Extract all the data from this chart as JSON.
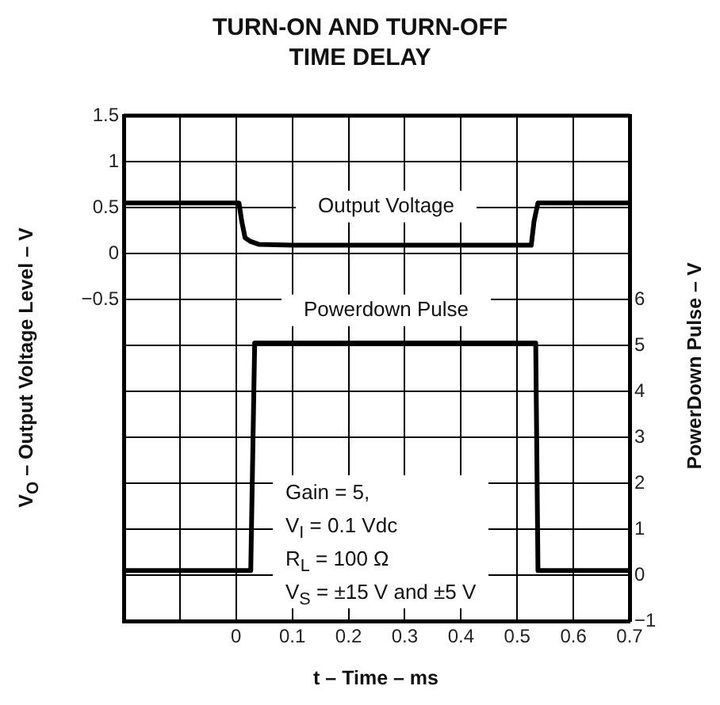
{
  "chart_data": {
    "type": "line",
    "title": "TURN-ON AND TURN-OFF TIME DELAY",
    "xlabel": "t – Time – ms",
    "ylabel": "V$_{O}$ – Output Voltage Level – V",
    "y2label": "PowerDown Pulse – V",
    "xlim": [
      -0.2,
      0.7
    ],
    "xticks": [
      {
        "value": -0.1,
        "label": null
      },
      0,
      0.1,
      0.2,
      0.3,
      0.4,
      0.5,
      0.6,
      0.7
    ],
    "ylim": [
      -4,
      1.5
    ],
    "yticks": [
      {
        "value": -0.5,
        "label": "−0.5"
      },
      0,
      0.5,
      1,
      1.5
    ],
    "y2lim": [
      -1,
      10
    ],
    "y2ticks": [
      {
        "value": -1,
        "label": "−1"
      },
      0,
      1,
      2,
      3,
      4,
      5,
      6
    ],
    "grid": true,
    "legend": false,
    "marker": "none",
    "line_style": "solid",
    "series": [
      {
        "name": "Output Voltage",
        "color": "#000000",
        "axis": "y",
        "x": [
          -0.2,
          0.005,
          0.01,
          0.016,
          0.026,
          0.04,
          0.1,
          0.3,
          0.5,
          0.525,
          0.53,
          0.537,
          0.7
        ],
        "values": [
          0.55,
          0.55,
          0.35,
          0.17,
          0.13,
          0.1,
          0.09,
          0.09,
          0.09,
          0.09,
          0.35,
          0.55,
          0.55
        ]
      },
      {
        "name": "Powerdown Pulse",
        "color": "#000000",
        "axis": "y2",
        "x": [
          -0.2,
          0.026,
          0.033,
          0.3,
          0.533,
          0.537,
          0.7
        ],
        "values": [
          0.1,
          0.1,
          5.05,
          5.05,
          5.05,
          0.1,
          0.1
        ]
      }
    ],
    "annotations": [
      "Gain = 5,",
      "V$_{I}$ = 0.1 Vdc",
      "R$_{L}$ = 100 Ω",
      "V$_{S}$ = ±15 V and ±5 V"
    ]
  }
}
